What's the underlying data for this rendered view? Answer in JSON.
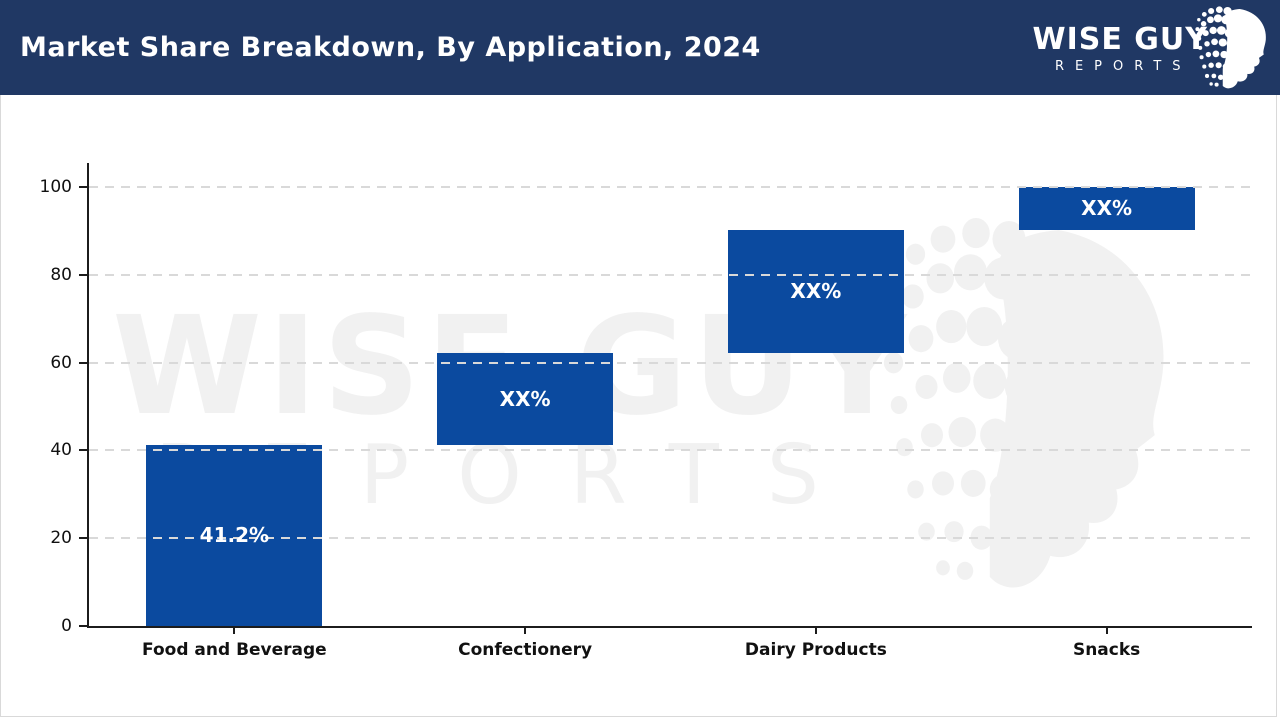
{
  "header": {
    "title": "Market Share Breakdown, By Application, 2024",
    "logo": {
      "name": "WISE GUY",
      "sub": "REPORTS"
    }
  },
  "watermark": {
    "line1": "WISE GUY",
    "line2": "REPORTS"
  },
  "chart_data": {
    "type": "bar",
    "subtype": "waterfall-floating-bars",
    "title": "Market Share Breakdown, By Application, 2024",
    "categories": [
      "Food and Beverage",
      "Confectionery",
      "Dairy Products",
      "Snacks"
    ],
    "series": [
      {
        "name": "Market Share %",
        "segments": [
          [
            0,
            41.2
          ],
          [
            41.2,
            62.2
          ],
          [
            62.2,
            90.2
          ],
          [
            90.2,
            100
          ]
        ]
      }
    ],
    "bar_labels": [
      "41.2%",
      "XX%",
      "XX%",
      "XX%"
    ],
    "ylim": [
      0,
      100
    ],
    "yticks": [
      0,
      20,
      40,
      60,
      80,
      100
    ],
    "xlabel": "",
    "ylabel": "",
    "grid": "horizontal-dashed",
    "legend": "none",
    "colors": {
      "bar": "#0b4a9f",
      "bar_label": "#ffffff",
      "grid": "#d9d9d9",
      "axis": "#1c1c1c",
      "header_bg": "#203864",
      "watermark": "#f1f1f1"
    }
  }
}
